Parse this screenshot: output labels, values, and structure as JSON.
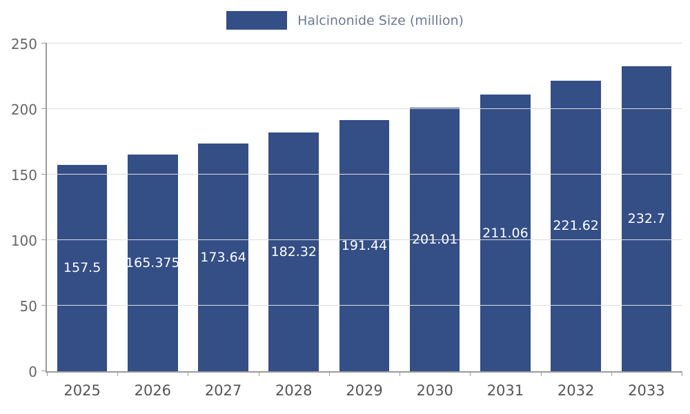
{
  "legend": {
    "label": "Halcinonide Size (million)"
  },
  "chart_data": {
    "type": "bar",
    "title": "Halcinonide Size (million)",
    "categories": [
      "2025",
      "2026",
      "2027",
      "2028",
      "2029",
      "2030",
      "2031",
      "2032",
      "2033"
    ],
    "values": [
      157.5,
      165.375,
      173.64,
      182.32,
      191.44,
      201.01,
      211.06,
      221.62,
      232.7
    ],
    "bar_labels": [
      "157.5",
      "165.375",
      "173.64",
      "182.32",
      "191.44",
      "201.01",
      "211.06",
      "221.62",
      "232.7"
    ],
    "xlabel": "",
    "ylabel": "",
    "ylim": [
      0,
      250
    ],
    "yticks": [
      0,
      50,
      100,
      150,
      200,
      250
    ],
    "grid": true,
    "legend_position": "top-center",
    "colors": {
      "bar": "#344e86",
      "bar_label_text": "#ffffff",
      "axis_text": "#666666",
      "legend_text": "#6c7a93",
      "gridline": "#dddddd",
      "axis_line": "#9a9a9a",
      "background": "#ffffff"
    }
  }
}
